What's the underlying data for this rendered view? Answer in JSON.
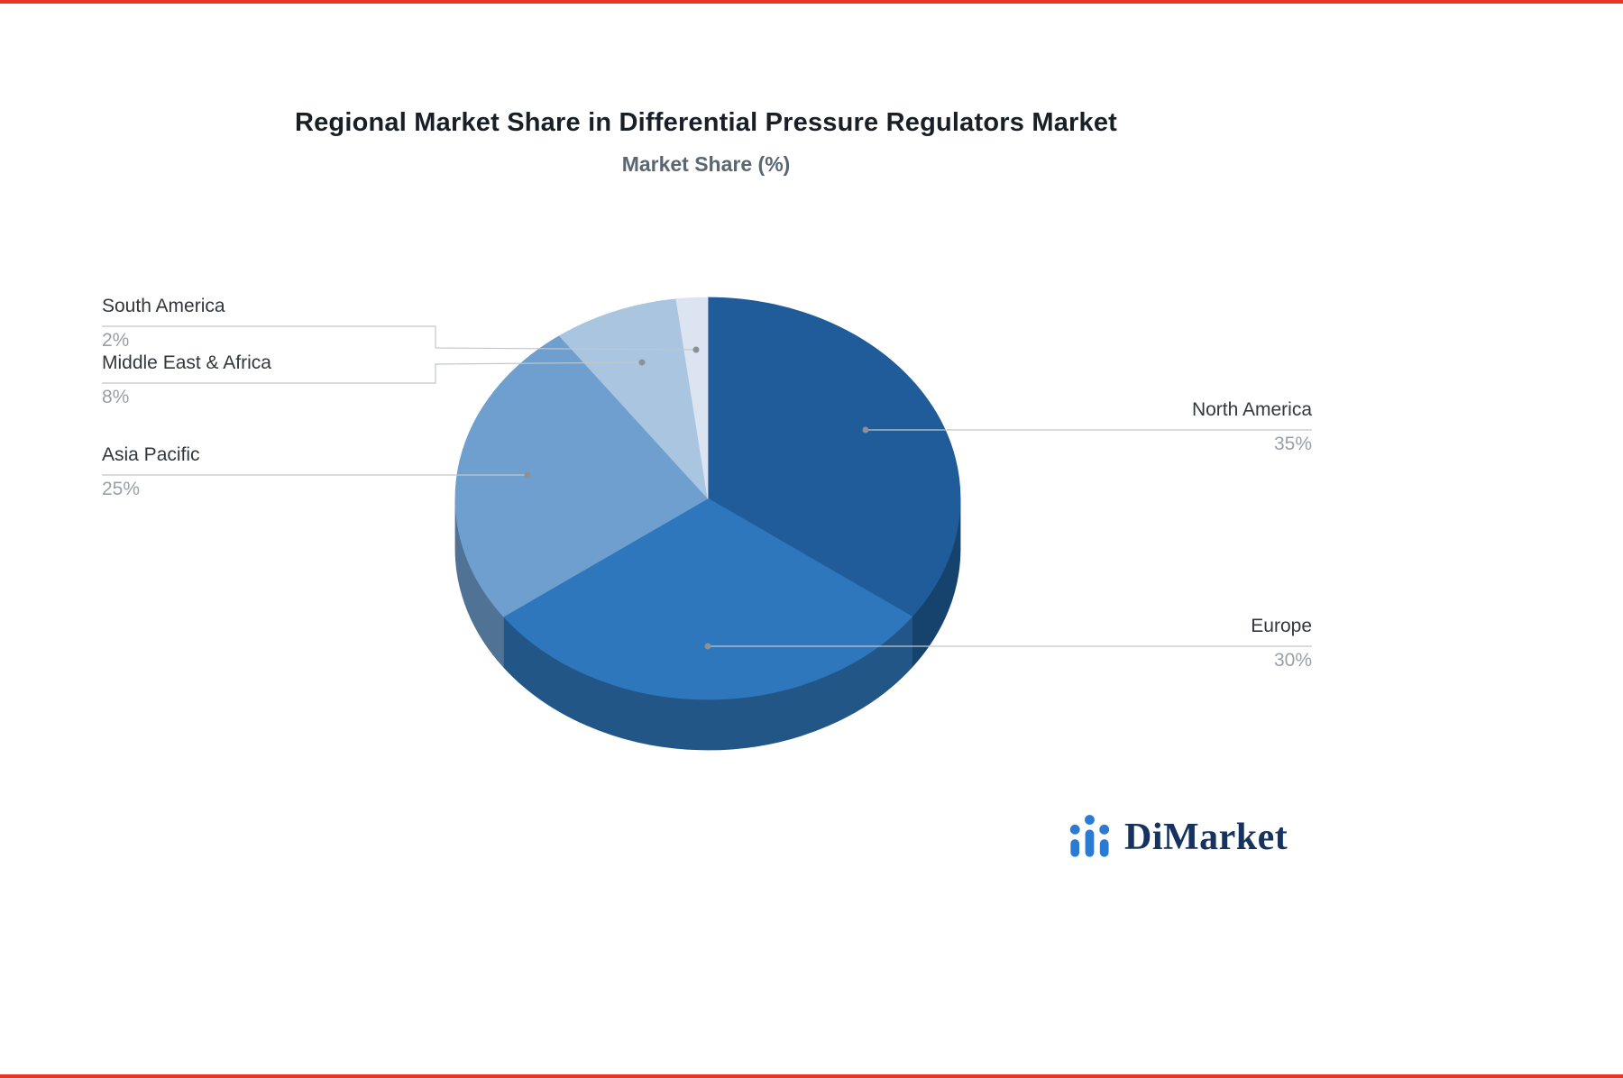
{
  "header": {
    "title": "Regional Market Share in Differential Pressure Regulators Market",
    "subtitle": "Market Share (%)"
  },
  "chart_data": {
    "type": "pie",
    "style": "3d",
    "title": "Regional Market Share in Differential Pressure Regulators Market",
    "subtitle": "Market Share (%)",
    "unit": "%",
    "labels": [
      "North America",
      "Europe",
      "Asia Pacific",
      "Middle East & Africa",
      "South America"
    ],
    "values": [
      35,
      30,
      25,
      8,
      2
    ],
    "display_values": [
      "35%",
      "30%",
      "25%",
      "8%",
      "2%"
    ],
    "colors": [
      "#1f5c99",
      "#2e77bc",
      "#6f9fce",
      "#aac5e0",
      "#dbe4f0"
    ],
    "legend_position": "none",
    "start_angle_deg": 0,
    "direction": "clockwise"
  },
  "branding": {
    "logo_text": "DiMarket",
    "logo_icon": "bar-chart-dots-icon",
    "logo_icon_color": "#2b7bd4",
    "logo_text_color": "#15335e"
  }
}
